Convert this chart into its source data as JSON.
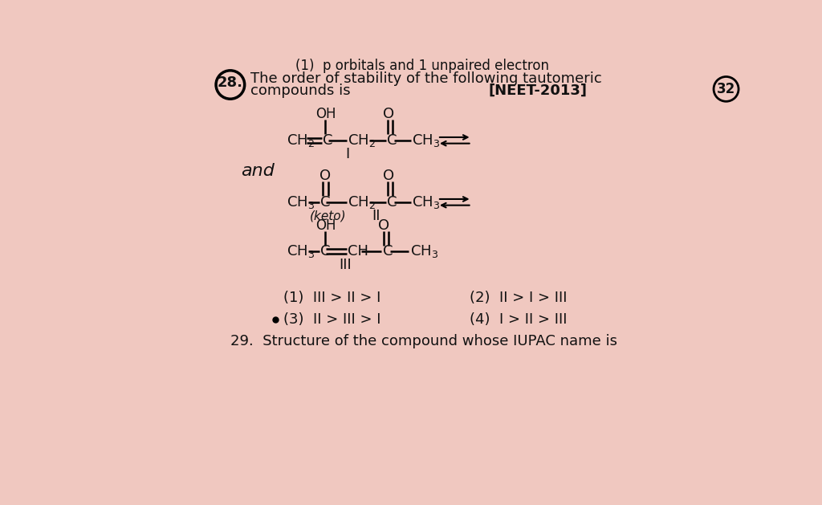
{
  "bg_color": "#f0c8c0",
  "title_text": "The order of stability of the following tautomeric",
  "title_text2": "compounds is",
  "neet_tag": "[NEET-2013]",
  "q_number": "28.",
  "q_number2": "32",
  "answer_options": [
    "(1)  III > II > I",
    "(2)  II > I > III",
    "(3)  II > III > I",
    "(4)  I > II > III"
  ],
  "footer_text": "29.  Structure of the compound whose IUPAC name is",
  "top_text": "(1)  p orbitals and 1 unpaired electron",
  "text_color": "#111111",
  "font_size_title": 13,
  "font_size_options": 13,
  "and_text": "and",
  "keto_text": "(keto)",
  "label_I": "I",
  "label_II": "II",
  "label_III": "III"
}
